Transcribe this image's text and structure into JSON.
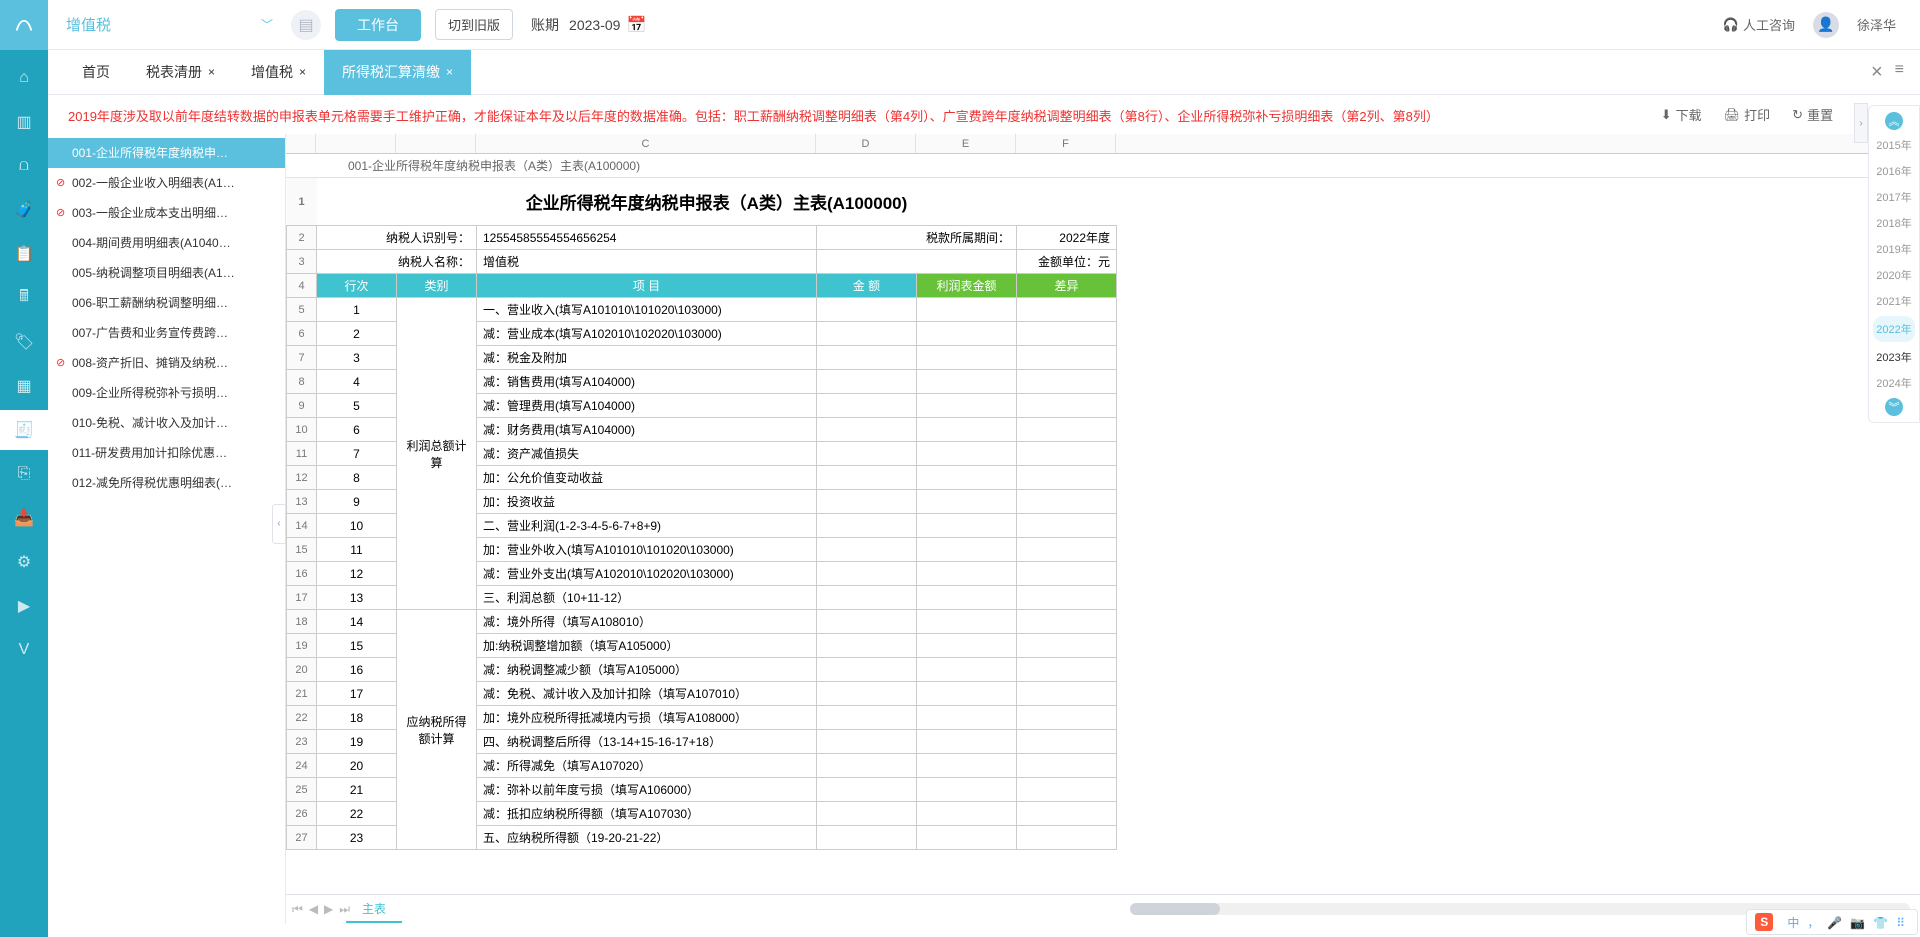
{
  "header": {
    "company": "增值税",
    "workspace_btn": "工作台",
    "old_btn": "切到旧版",
    "period_label": "账期",
    "period_value": "2023-09",
    "support": "人工咨询",
    "user_name": "徐泽华"
  },
  "tabs": [
    {
      "label": "首页",
      "closable": false,
      "active": false
    },
    {
      "label": "税表清册",
      "closable": true,
      "active": false
    },
    {
      "label": "增值税",
      "closable": true,
      "active": false
    },
    {
      "label": "所得税汇算清缴",
      "closable": true,
      "active": true
    }
  ],
  "tabbar_close_all_icon": "×",
  "tabbar_menu_icon": "≡",
  "warning_text": "2019年度涉及取以前年度结转数据的申报表单元格需要手工维护正确，才能保证本年及以后年度的数据准确。包括：职工薪酬纳税调整明细表（第4列）、广宣费跨年度纳税调整明细表（第8行）、企业所得税弥补亏损明细表（第2列、第8列）",
  "actions": {
    "download": "下载",
    "print": "打印",
    "reset": "重置",
    "refresh": "刷新"
  },
  "formlist": [
    {
      "label": "001-企业所得税年度纳税申…",
      "selected": true,
      "warn": false
    },
    {
      "label": "002-一般企业收入明细表(A1…",
      "warn": true
    },
    {
      "label": "003-一般企业成本支出明细…",
      "warn": true
    },
    {
      "label": "004-期间费用明细表(A1040…"
    },
    {
      "label": "005-纳税调整项目明细表(A1…"
    },
    {
      "label": "006-职工薪酬纳税调整明细…"
    },
    {
      "label": "007-广告费和业务宣传费跨…"
    },
    {
      "label": "008-资产折旧、摊销及纳税…",
      "warn": true
    },
    {
      "label": "009-企业所得税弥补亏损明…"
    },
    {
      "label": "010-免税、减计收入及加计…"
    },
    {
      "label": "011-研发费用加计扣除优惠…"
    },
    {
      "label": "012-减免所得税优惠明细表(…"
    }
  ],
  "spreadsheet": {
    "path": "001-企业所得税年度纳税申报表（A类）主表(A100000)",
    "title": "企业所得税年度纳税申报表（A类）主表(A100000)",
    "taxpayer_id_label": "纳税人识别号：",
    "taxpayer_id": "12554585554554656254",
    "tax_period_label": "税款所属期间：",
    "tax_period": "2022年度",
    "taxpayer_name_label": "纳税人名称：",
    "taxpayer_name": "增值税",
    "unit_label": "金额单位：元",
    "col_letters": [
      "C",
      "D",
      "E",
      "F"
    ],
    "headers": {
      "rownum": "行次",
      "category": "类别",
      "item": "项    目",
      "amount": "金    额",
      "pl_amount": "利润表金额",
      "diff": "差异"
    },
    "categories": {
      "profit": "利润总额计算",
      "taxable": "应纳税所得额计算"
    },
    "rows": [
      {
        "n": 1,
        "idx": "1",
        "item": "一、营业收入(填写A101010\\101020\\103000)"
      },
      {
        "n": 2,
        "idx": "2",
        "item": "减：营业成本(填写A102010\\102020\\103000)"
      },
      {
        "n": 3,
        "idx": "3",
        "item": "减：税金及附加"
      },
      {
        "n": 4,
        "idx": "4",
        "item": "减：销售费用(填写A104000)"
      },
      {
        "n": 5,
        "idx": "5",
        "item": "减：管理费用(填写A104000)"
      },
      {
        "n": 6,
        "idx": "6",
        "item": "减：财务费用(填写A104000)"
      },
      {
        "n": 7,
        "idx": "7",
        "item": "减：资产减值损失"
      },
      {
        "n": 8,
        "idx": "8",
        "item": "加：公允价值变动收益"
      },
      {
        "n": 9,
        "idx": "9",
        "item": "加：投资收益"
      },
      {
        "n": 10,
        "idx": "10",
        "item": "二、营业利润(1-2-3-4-5-6-7+8+9)"
      },
      {
        "n": 11,
        "idx": "11",
        "item": "加：营业外收入(填写A101010\\101020\\103000)"
      },
      {
        "n": 12,
        "idx": "12",
        "item": "减：营业外支出(填写A102010\\102020\\103000)"
      },
      {
        "n": 13,
        "idx": "13",
        "item": "三、利润总额（10+11-12）"
      },
      {
        "n": 14,
        "idx": "14",
        "item": "减：境外所得（填写A108010）"
      },
      {
        "n": 15,
        "idx": "15",
        "item": "加:纳税调整增加额（填写A105000）"
      },
      {
        "n": 16,
        "idx": "16",
        "item": "减：纳税调整减少额（填写A105000）"
      },
      {
        "n": 17,
        "idx": "17",
        "item": "减：免税、减计收入及加计扣除（填写A107010）"
      },
      {
        "n": 18,
        "idx": "18",
        "item": "加：境外应税所得抵减境内亏损（填写A108000）"
      },
      {
        "n": 19,
        "idx": "19",
        "item": "四、纳税调整后所得（13-14+15-16-17+18）"
      },
      {
        "n": 20,
        "idx": "20",
        "item": "减：所得减免（填写A107020）"
      },
      {
        "n": 21,
        "idx": "21",
        "item": "减：弥补以前年度亏损（填写A106000）"
      },
      {
        "n": 22,
        "idx": "22",
        "item": "减：抵扣应纳税所得额（填写A107030）"
      },
      {
        "n": 23,
        "idx": "23",
        "item": "五、应纳税所得额（19-20-21-22）"
      }
    ],
    "sheet_tab": "主表",
    "col_widths": {
      "rownum": 30,
      "idx": 80,
      "cat": 80,
      "item": 340,
      "amt": 100,
      "pl": 100,
      "diff": 100
    }
  },
  "years": [
    "2015年",
    "2016年",
    "2017年",
    "2018年",
    "2019年",
    "2020年",
    "2021年",
    "2022年",
    "2023年",
    "2024年"
  ],
  "year_selected": "2022年",
  "year_dark": "2023年",
  "ime": {
    "logo": "S",
    "items": [
      "中",
      "，",
      "🎤",
      "📷",
      "👕",
      "⠿"
    ]
  }
}
